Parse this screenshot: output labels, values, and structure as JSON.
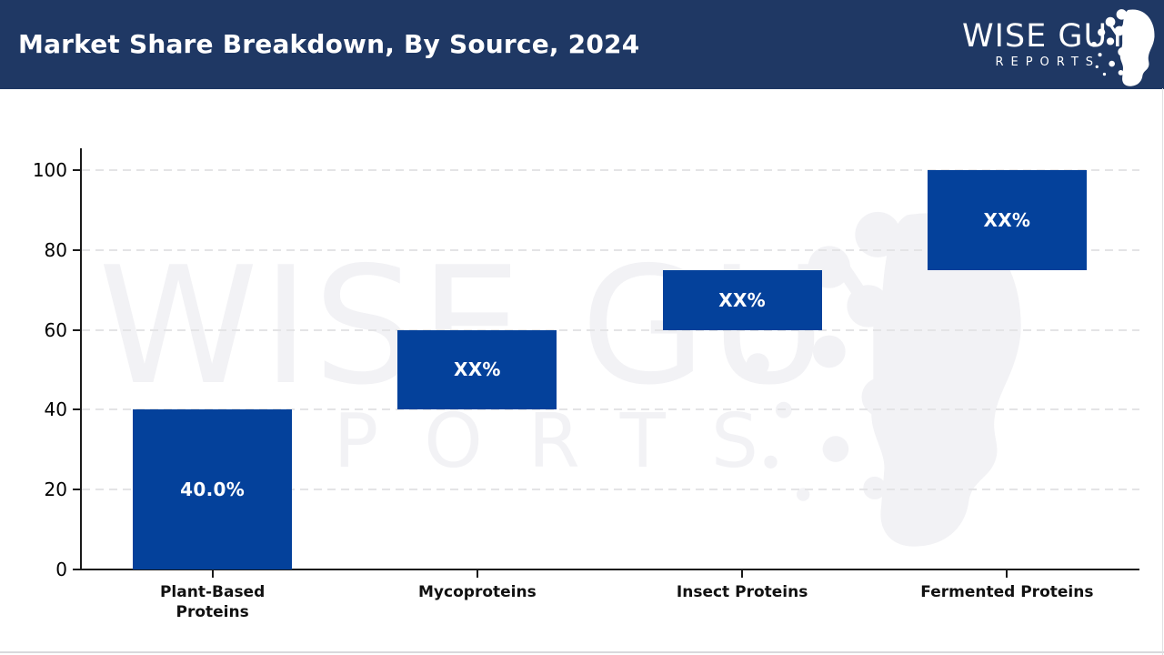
{
  "header": {
    "title": "Market Share Breakdown, By Source, 2024",
    "logo": {
      "line1": "WISE GUY",
      "line2": "REPORTS"
    }
  },
  "watermark": {
    "line1": "WISE GUY",
    "line2": "REPORTS"
  },
  "colors": {
    "header_bg": "#1F3864",
    "bar_blue": "#04419B",
    "grid_gray": "#E4E4E6",
    "watermark_gray": "#F2F2F5"
  },
  "chart_data": {
    "type": "bar",
    "subtype": "waterfall",
    "title": "Market Share Breakdown, By Source, 2024",
    "categories": [
      "Plant-Based\nProteins",
      "Mycoproteins",
      "Insect Proteins",
      "Fermented Proteins"
    ],
    "segments": [
      [
        0,
        40
      ],
      [
        40,
        60
      ],
      [
        60,
        75
      ],
      [
        75,
        100
      ]
    ],
    "values": [
      40,
      20,
      15,
      25
    ],
    "bar_labels": [
      "40.0%",
      "XX%",
      "XX%",
      "XX%"
    ],
    "xlabel": "",
    "ylabel": "",
    "ylim": [
      0,
      100
    ],
    "yticks": [
      0,
      20,
      40,
      60,
      80,
      100
    ],
    "grid": "horizontal-dashed",
    "legend": "none",
    "bar_color": "#04419B"
  }
}
